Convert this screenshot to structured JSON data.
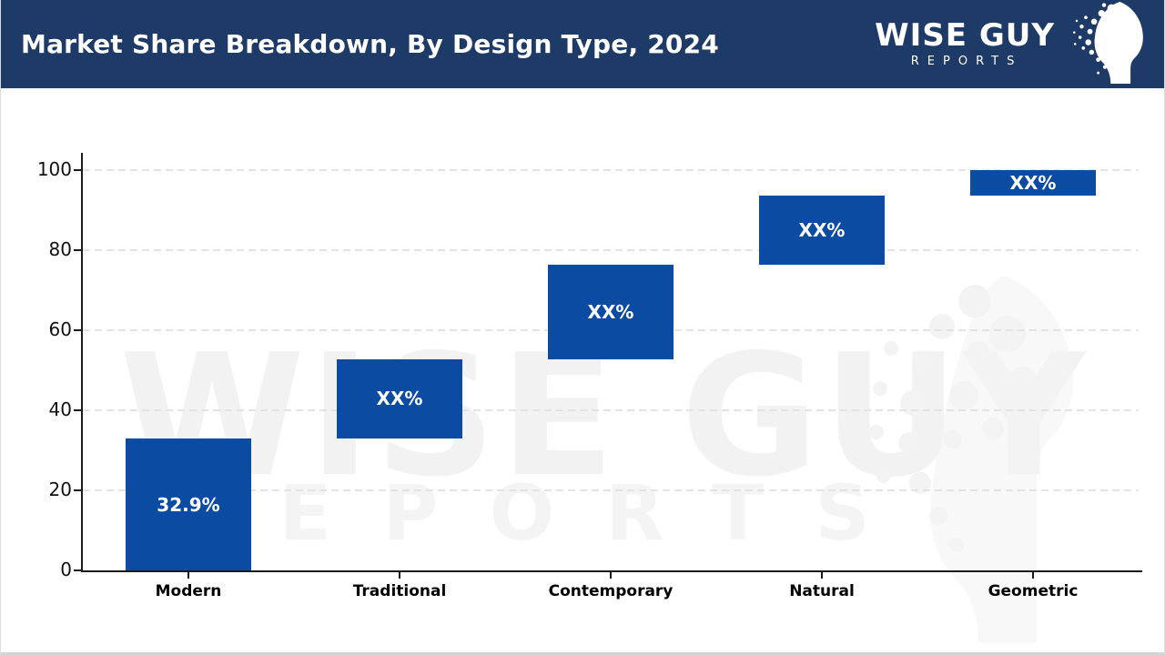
{
  "header": {
    "title": "Market Share Breakdown, By Design Type, 2024",
    "bg_color": "#1e3a66",
    "logo": {
      "line1": "WISE GUY",
      "line2": "REPORTS"
    }
  },
  "watermark": {
    "line1": "WISE GUY",
    "line2": "REPORTS"
  },
  "chart_data": {
    "type": "bar",
    "subtype": "waterfall-stacked-segments",
    "title": "Market Share Breakdown, By Design Type, 2024",
    "categories": [
      "Modern",
      "Traditional",
      "Contemporary",
      "Natural",
      "Geometric"
    ],
    "segments": [
      {
        "category": "Modern",
        "start": 0,
        "end": 32.9,
        "value": 32.9,
        "label": "32.9%"
      },
      {
        "category": "Traditional",
        "start": 32.9,
        "end": 52.8,
        "value": 19.9,
        "label": "XX%"
      },
      {
        "category": "Contemporary",
        "start": 52.8,
        "end": 76.4,
        "value": 23.6,
        "label": "XX%"
      },
      {
        "category": "Natural",
        "start": 76.4,
        "end": 93.7,
        "value": 17.3,
        "label": "XX%"
      },
      {
        "category": "Geometric",
        "start": 93.7,
        "end": 100,
        "value": 6.3,
        "label": "XX%"
      }
    ],
    "yticks": [
      0,
      20,
      40,
      60,
      80,
      100
    ],
    "ylim": [
      0,
      100
    ],
    "xlabel": "",
    "ylabel": "",
    "grid": "dashed-horizontal",
    "legend": "none",
    "bar_color": "#0b4ba1",
    "bar_label_color": "#ffffff",
    "axis_color": "#1a1a1a",
    "gridline_color": "#e3e3e3"
  }
}
